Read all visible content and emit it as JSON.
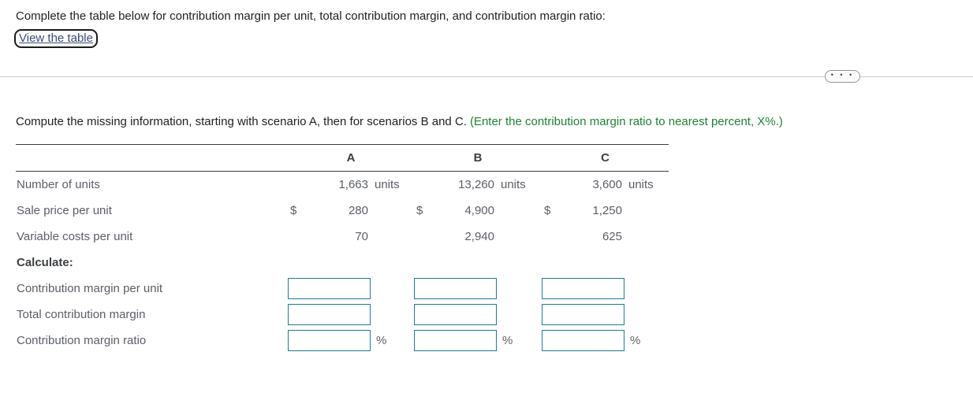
{
  "page": {
    "instruction_top": "Complete the table below for contribution margin per unit, total contribution margin, and contribution margin ratio:",
    "view_table_link": "View the table",
    "ellipsis_button": "• • •",
    "instruction_main": "Compute the missing information, starting with scenario A, then for scenarios B and C.",
    "instruction_note": "(Enter the contribution margin ratio to nearest percent, X%.)"
  },
  "table": {
    "headers": [
      "A",
      "B",
      "C"
    ],
    "rows": [
      {
        "label": "Number of units",
        "currency": "",
        "values": [
          "1,663",
          "13,260",
          "3,600"
        ],
        "suffix": "units"
      },
      {
        "label": "Sale price per unit",
        "currency": "$",
        "values": [
          "280",
          "4,900",
          "1,250"
        ],
        "suffix": ""
      },
      {
        "label": "Variable costs per unit",
        "currency": "",
        "values": [
          "70",
          "2,940",
          "625"
        ],
        "suffix": ""
      }
    ],
    "calculate_label": "Calculate:",
    "input_rows": [
      {
        "label": "Contribution margin per unit",
        "suffix": ""
      },
      {
        "label": "Total contribution margin",
        "suffix": ""
      },
      {
        "label": "Contribution margin ratio",
        "suffix": "%"
      }
    ]
  }
}
